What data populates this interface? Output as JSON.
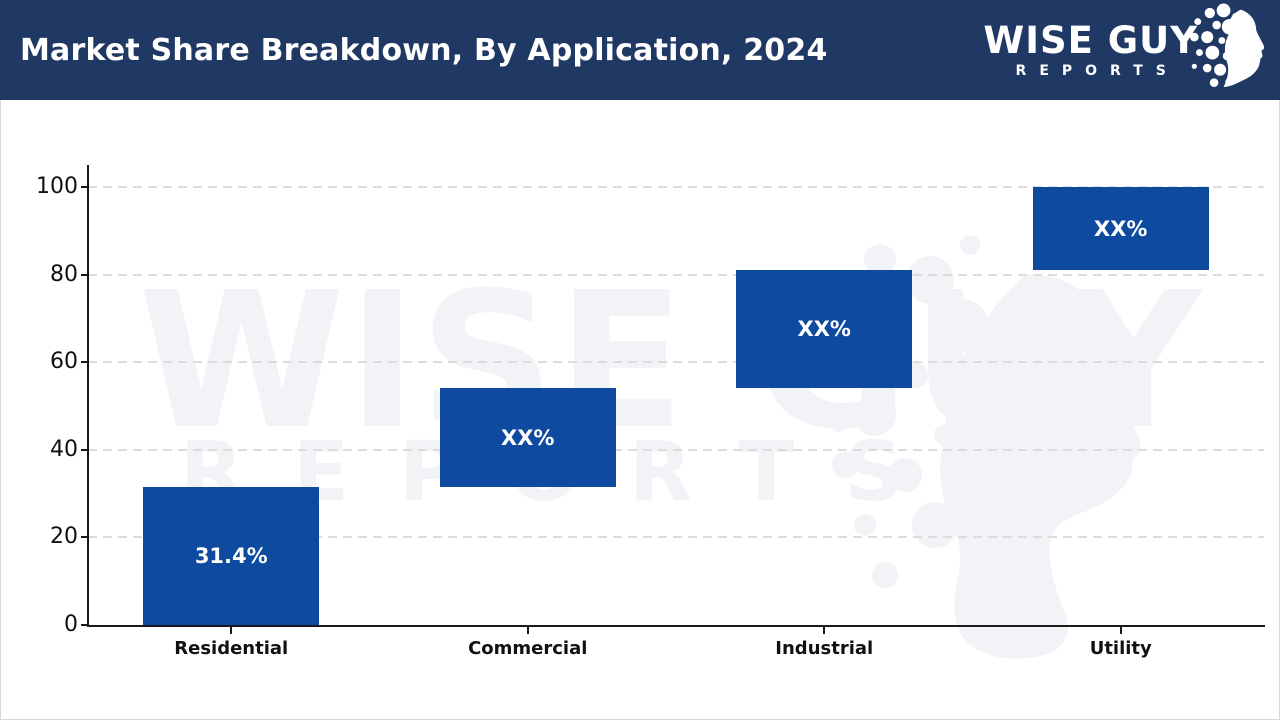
{
  "header": {
    "title": "Market Share Breakdown, By Application, 2024"
  },
  "logo": {
    "line1": "WISE GUY",
    "line2": "REPORTS",
    "head_icon": "dotted-face-profile"
  },
  "watermark": {
    "line1": "WISE GUY",
    "line2": "REPORTS",
    "head_icon": "dotted-face-profile"
  },
  "chart_data": {
    "type": "bar",
    "subtype": "waterfall",
    "title": "Market Share Breakdown, By Application, 2024",
    "categories": [
      "Residential",
      "Commercial",
      "Industrial",
      "Utility"
    ],
    "segments": [
      {
        "category": "Residential",
        "start": 0,
        "end": 31.4,
        "value": 31.4,
        "label": "31.4%"
      },
      {
        "category": "Commercial",
        "start": 31.4,
        "end": 54.0,
        "value": 22.6,
        "label": "XX%"
      },
      {
        "category": "Industrial",
        "start": 54.0,
        "end": 81.0,
        "value": 27.0,
        "label": "XX%"
      },
      {
        "category": "Utility",
        "start": 81.0,
        "end": 100.0,
        "value": 19.0,
        "label": "XX%"
      }
    ],
    "y_ticks": [
      0,
      20,
      40,
      60,
      80,
      100
    ],
    "ylim": [
      0,
      105
    ],
    "xlabel": "",
    "ylabel": "",
    "grid": "horizontal-dashed",
    "legend": "none"
  },
  "colors": {
    "header_bg": "#203864",
    "bar": "#0d4aa0",
    "bar_label": "#ffffff",
    "grid": "#dcdcdc",
    "axis": "#1a1a1a",
    "tick_text": "#111111",
    "watermark": "#f2f3f6",
    "title_text": "#ffffff"
  }
}
